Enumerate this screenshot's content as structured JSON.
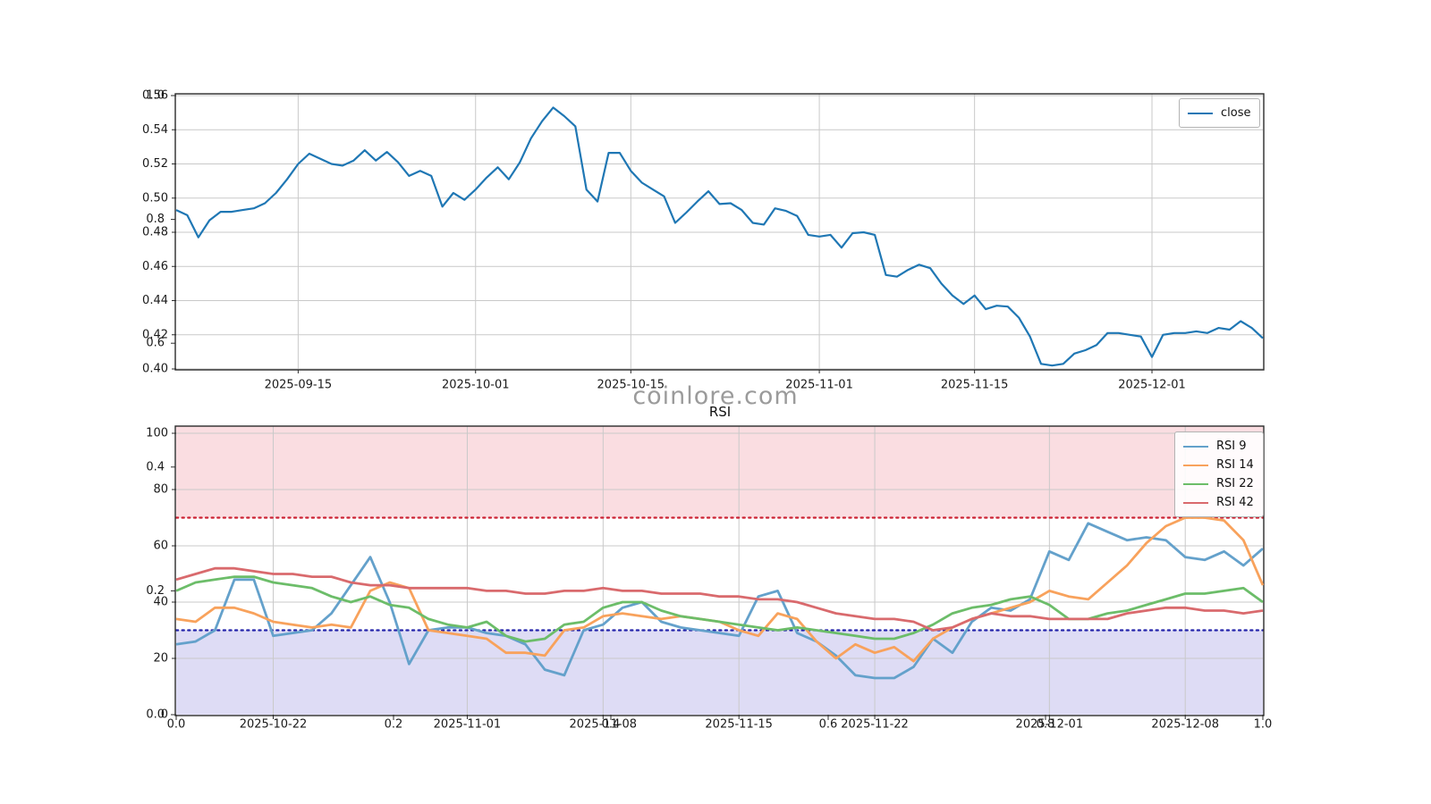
{
  "watermark": "coinlore.com",
  "overlay_axis": {
    "x_labels": [
      "0.0",
      "0.2",
      "0.4",
      "0.6",
      "0.8",
      "1.0"
    ],
    "y_labels": [
      "1.0",
      "0.8",
      "0.6",
      "0.4",
      "0.2",
      "0.0"
    ]
  },
  "colors": {
    "grid": "#c9c9c9",
    "spine": "#2a2a2a",
    "overbought_line": "#cc2233",
    "oversold_line": "#2323aa",
    "overbought_band": "#fadde1",
    "oversold_band": "#dedcf5",
    "tick_text": "#1a1a1a"
  },
  "chart_data": [
    {
      "type": "line",
      "name": "price-chart",
      "title": "",
      "grid": true,
      "legend_position": "upper right",
      "ylim": [
        0.4,
        0.561
      ],
      "yticks": [
        0.4,
        0.42,
        0.44,
        0.46,
        0.48,
        0.5,
        0.52,
        0.54,
        0.56
      ],
      "x_start": "2025-09-04",
      "x_end": "2025-12-11",
      "xtick_labels": [
        "2025-09-15",
        "2025-10-01",
        "2025-10-15",
        "2025-11-01",
        "2025-11-15",
        "2025-12-01"
      ],
      "series": [
        {
          "name": "close",
          "color": "#1f77b4",
          "values": [
            0.493,
            0.49,
            0.477,
            0.487,
            0.492,
            0.492,
            0.493,
            0.494,
            0.497,
            0.503,
            0.511,
            0.52,
            0.526,
            0.523,
            0.52,
            0.519,
            0.522,
            0.528,
            0.522,
            0.527,
            0.521,
            0.513,
            0.516,
            0.513,
            0.495,
            0.503,
            0.499,
            0.505,
            0.512,
            0.518,
            0.511,
            0.521,
            0.535,
            0.545,
            0.553,
            0.548,
            0.542,
            0.505,
            0.498,
            0.5265,
            0.5265,
            0.516,
            0.509,
            0.505,
            0.501,
            0.4855,
            0.4915,
            0.498,
            0.504,
            0.4965,
            0.497,
            0.493,
            0.4855,
            0.4845,
            0.494,
            0.4925,
            0.4895,
            0.4785,
            0.4775,
            0.4785,
            0.471,
            0.4795,
            0.48,
            0.4785,
            0.455,
            0.454,
            0.458,
            0.461,
            0.459,
            0.45,
            0.443,
            0.438,
            0.443,
            0.435,
            0.437,
            0.4365,
            0.43,
            0.419,
            0.403,
            0.402,
            0.403,
            0.409,
            0.411,
            0.414,
            0.421,
            0.421,
            0.42,
            0.419,
            0.407,
            0.42,
            0.421,
            0.421,
            0.422,
            0.421,
            0.424,
            0.423,
            0.428,
            0.424,
            0.418
          ]
        }
      ]
    },
    {
      "type": "line",
      "name": "rsi-chart",
      "title": "RSI",
      "grid": true,
      "legend_position": "upper right",
      "ylim": [
        0,
        102.5
      ],
      "yticks": [
        0,
        20,
        40,
        60,
        80,
        100
      ],
      "overbought_level": 70,
      "oversold_level": 30,
      "bands": [
        {
          "from": 70,
          "to": 102.5,
          "color": "#fadde1"
        },
        {
          "from": 0,
          "to": 30,
          "color": "#dedcf5"
        }
      ],
      "x_start": "2025-10-17",
      "x_end": "2025-12-12",
      "xtick_labels": [
        "2025-10-22",
        "2025-11-01",
        "2025-11-08",
        "2025-11-15",
        "2025-11-22",
        "2025-12-01",
        "2025-12-08"
      ],
      "series": [
        {
          "name": "RSI 9",
          "color": "#64a1cb",
          "values": [
            25,
            26,
            30,
            48,
            48,
            28,
            29,
            30,
            36,
            46,
            56,
            40,
            18,
            30,
            31,
            31,
            29,
            28,
            25,
            16,
            14,
            30,
            32,
            38,
            40,
            33,
            31,
            30,
            29,
            28,
            42,
            44,
            29,
            26,
            21,
            14,
            13,
            13,
            17,
            27,
            22,
            33,
            38,
            37,
            41,
            58,
            55,
            68,
            65,
            62,
            63,
            62,
            56,
            55,
            58,
            53,
            59
          ]
        },
        {
          "name": "RSI 14",
          "color": "#f8a25c",
          "values": [
            34,
            33,
            38,
            38,
            36,
            33,
            32,
            31,
            32,
            31,
            44,
            47,
            45,
            30,
            29,
            28,
            27,
            22,
            22,
            21,
            30,
            31,
            35,
            36,
            35,
            34,
            35,
            34,
            33,
            30,
            28,
            36,
            34,
            26,
            20,
            25,
            22,
            24,
            19,
            27,
            31,
            34,
            36,
            38,
            40,
            44,
            42,
            41,
            47,
            53,
            61,
            67,
            70,
            70,
            69,
            62,
            46
          ]
        },
        {
          "name": "RSI 22",
          "color": "#6cbd69",
          "values": [
            44,
            47,
            48,
            49,
            49,
            47,
            46,
            45,
            42,
            40,
            42,
            39,
            38,
            34,
            32,
            31,
            33,
            28,
            26,
            27,
            32,
            33,
            38,
            40,
            40,
            37,
            35,
            34,
            33,
            32,
            31,
            30,
            31,
            30,
            29,
            28,
            27,
            27,
            29,
            32,
            36,
            38,
            39,
            41,
            42,
            39,
            34,
            34,
            36,
            37,
            39,
            41,
            43,
            43,
            44,
            45,
            40
          ]
        },
        {
          "name": "RSI 42",
          "color": "#d96a6d",
          "values": [
            48,
            50,
            52,
            52,
            51,
            50,
            50,
            49,
            49,
            47,
            46,
            46,
            45,
            45,
            45,
            45,
            44,
            44,
            43,
            43,
            44,
            44,
            45,
            44,
            44,
            43,
            43,
            43,
            42,
            42,
            41,
            41,
            40,
            38,
            36,
            35,
            34,
            34,
            33,
            30,
            31,
            34,
            36,
            35,
            35,
            34,
            34,
            34,
            34,
            36,
            37,
            38,
            38,
            37,
            37,
            36,
            37
          ]
        }
      ]
    }
  ]
}
